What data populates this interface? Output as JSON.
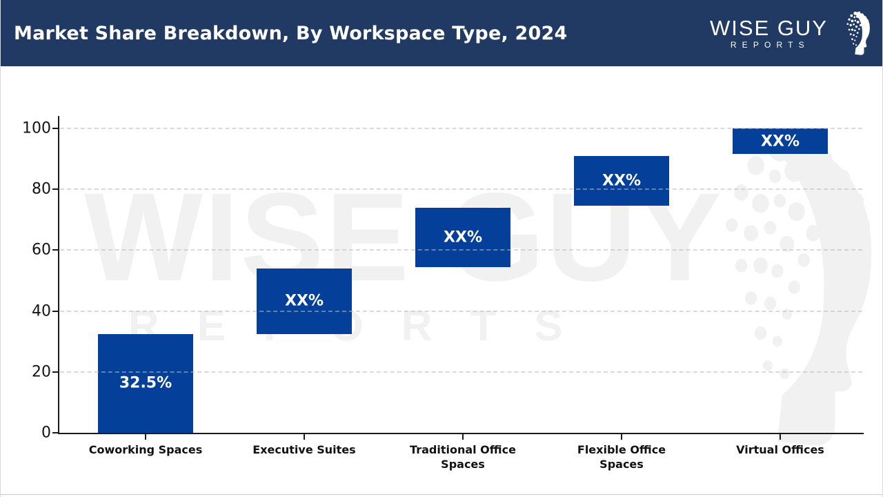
{
  "header": {
    "title": "Market Share Breakdown, By Workspace Type, 2024",
    "logo": {
      "name": "WISE GUY",
      "tagline": "REPORTS"
    }
  },
  "watermark": {
    "line1": "WISE GUY",
    "line2": "REPORTS"
  },
  "colors": {
    "header_bg": "#213a63",
    "bar_fill": "#04409a",
    "bar_label_text": "#ffffff",
    "axis": "#1a1a1a",
    "gridline": "#dfdfdf",
    "watermark": "#f1f1f1",
    "tick_text": "#141414"
  },
  "chart_data": {
    "type": "bar",
    "subtype": "floating-waterfall",
    "title": "Market Share Breakdown, By Workspace Type, 2024",
    "categories": [
      "Coworking Spaces",
      "Executive Suites",
      "Traditional Office Spaces",
      "Flexible Office Spaces",
      "Virtual Offices"
    ],
    "series": [
      {
        "name": "Market Share (%)",
        "bars": [
          {
            "category": "Coworking Spaces",
            "start": 0,
            "end": 32.5,
            "label": "32.5%"
          },
          {
            "category": "Executive Suites",
            "start": 32.5,
            "end": 54,
            "label": "XX%"
          },
          {
            "category": "Traditional Office Spaces",
            "start": 54.5,
            "end": 74,
            "label": "XX%"
          },
          {
            "category": "Flexible Office Spaces",
            "start": 74.5,
            "end": 91,
            "label": "XX%"
          },
          {
            "category": "Virtual Offices",
            "start": 91.5,
            "end": 100,
            "label": "XX%"
          }
        ]
      }
    ],
    "xlabel": "",
    "ylabel": "",
    "ylim": [
      0,
      104
    ],
    "yticks": [
      0,
      20,
      40,
      60,
      80,
      100
    ],
    "grid": "horizontal-dashed",
    "legend": "none"
  }
}
